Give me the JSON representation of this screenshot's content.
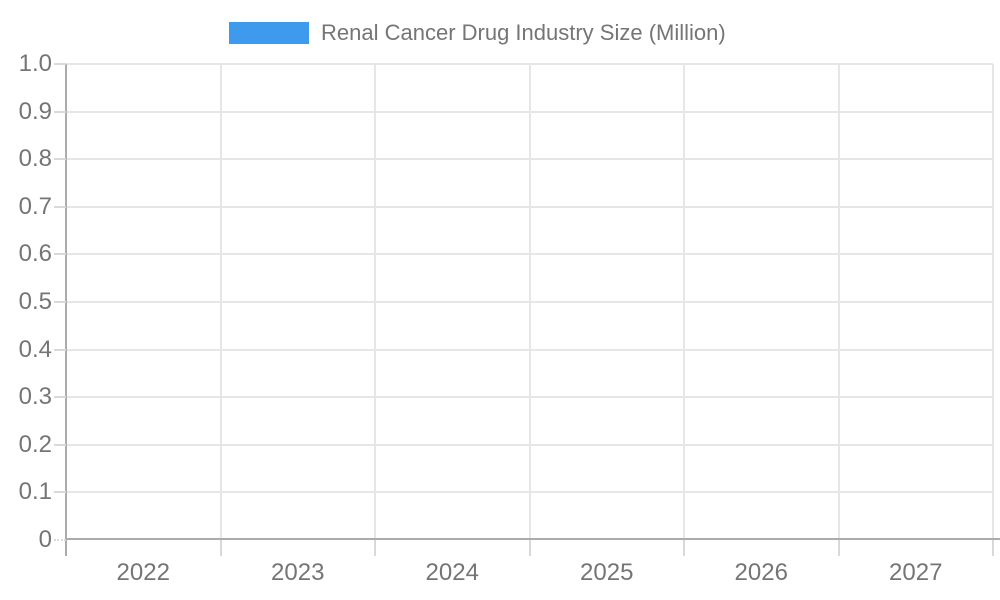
{
  "colors": {
    "accent_blue": "#3d9aec",
    "label_gray": "#757575",
    "gridline": "#e6e6e6",
    "tick": "#d9d9d9",
    "axis": "#ababab",
    "background": "#ffffff"
  },
  "legend": {
    "label": "Renal Cancer Drug Industry Size (Million)",
    "swatch_color": "#3d9aec",
    "position": "top"
  },
  "chart_data": {
    "type": "bar",
    "title": "Renal Cancer Drug Industry Size (Million)",
    "categories": [
      "2022",
      "2023",
      "2024",
      "2025",
      "2026",
      "2027"
    ],
    "series": [
      {
        "name": "Renal Cancer Drug Industry Size (Million)",
        "values": [
          null,
          null,
          null,
          null,
          null,
          null
        ]
      }
    ],
    "xlabel": "",
    "ylabel": "",
    "ylim": [
      0,
      1.0
    ],
    "yticks": [
      "1.0",
      "0.9",
      "0.8",
      "0.7",
      "0.6",
      "0.5",
      "0.4",
      "0.3",
      "0.2",
      "0.1",
      "0"
    ],
    "grid": true,
    "legend_position": "top"
  }
}
